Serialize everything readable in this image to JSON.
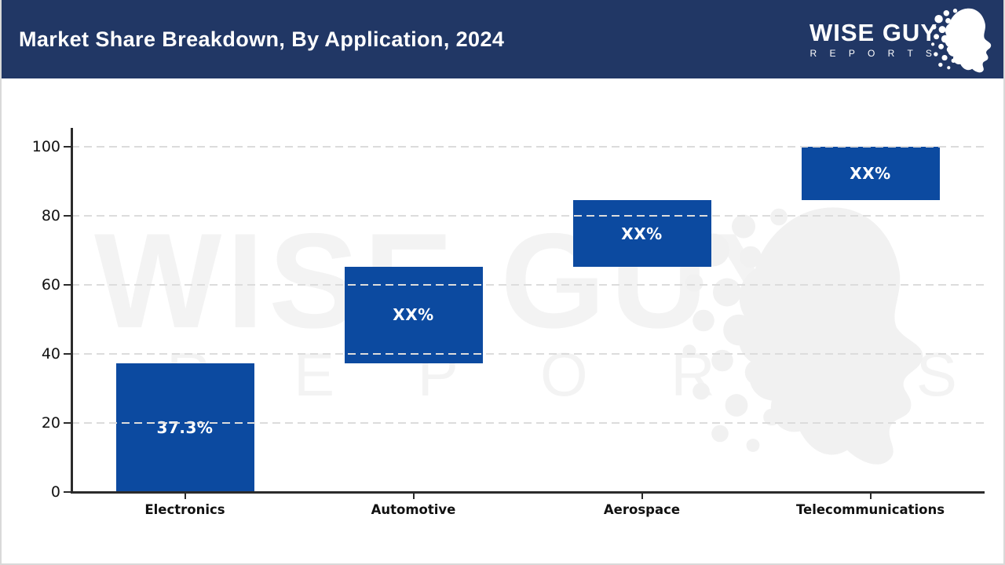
{
  "header": {
    "title": "Market Share Breakdown, By Application, 2024",
    "logo": {
      "line1": "WISE GUY",
      "line2": "R E P O R T S"
    }
  },
  "watermark": {
    "line1": "WISE GUY",
    "line2": "R E P O R T S"
  },
  "colors": {
    "header_bg": "#213765",
    "bar": "#0c4aa0",
    "grid": "#dcdcdc",
    "axis": "#2b2b2b",
    "watermark": "#f3f3f3"
  },
  "chart_data": {
    "type": "bar",
    "subtype": "waterfall",
    "title": "Market Share Breakdown, By Application, 2024",
    "categories": [
      "Electronics",
      "Automotive",
      "Aerospace",
      "Telecommunications"
    ],
    "segments": [
      {
        "category": "Electronics",
        "start": 0,
        "end": 37.3,
        "label": "37.3%"
      },
      {
        "category": "Automotive",
        "start": 37.3,
        "end": 65.2,
        "label": "XX%"
      },
      {
        "category": "Aerospace",
        "start": 65.2,
        "end": 84.5,
        "label": "XX%"
      },
      {
        "category": "Telecommunications",
        "start": 84.5,
        "end": 100,
        "label": "XX%"
      }
    ],
    "ylabel": "",
    "xlabel": "",
    "yticks": [
      0,
      20,
      40,
      60,
      80,
      100
    ],
    "ylim": [
      0,
      105.5
    ],
    "grid": "dashed-horizontal",
    "legend": "none",
    "bar_color": "#0c4aa0",
    "value_label_color": "#ffffff"
  }
}
